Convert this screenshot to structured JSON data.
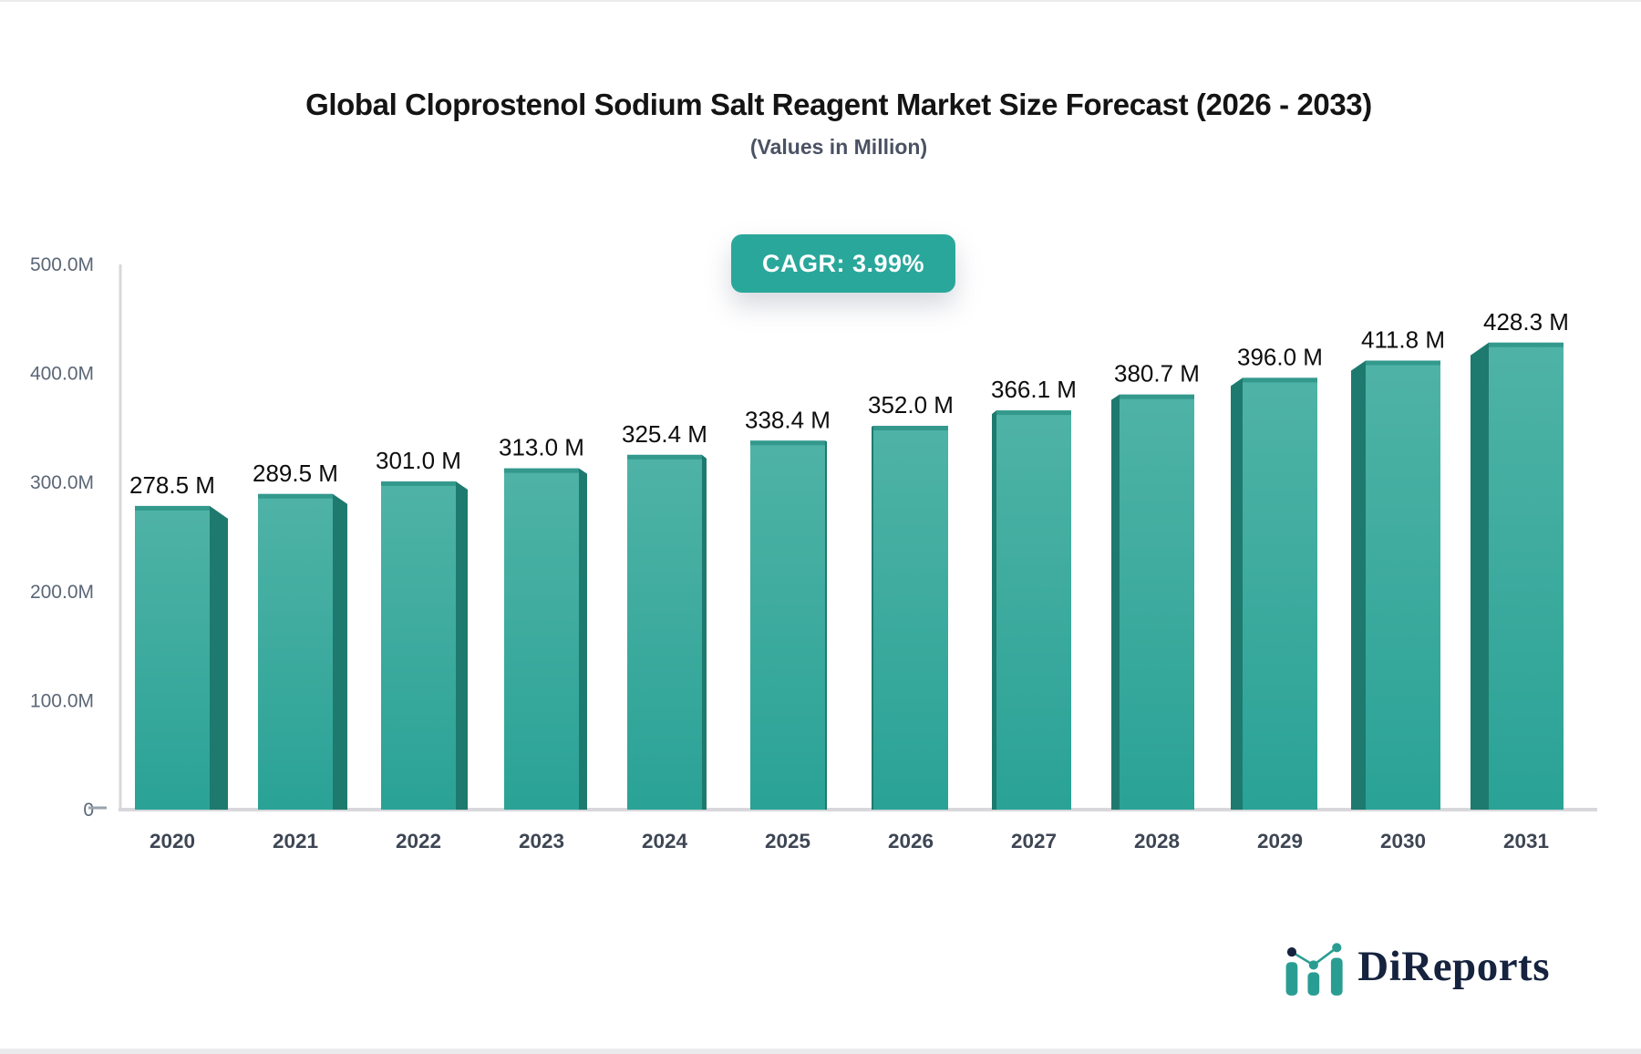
{
  "title": "Global Cloprostenol Sodium Salt Reagent Market Size Forecast (2026 - 2033)",
  "subtitle": "(Values in Million)",
  "cagr_badge": "CAGR: 3.99%",
  "logo": {
    "text": "DiReports"
  },
  "colors": {
    "accent_teal": "#2AA79B",
    "bar_front_top": "#4FB3A6",
    "bar_front_bottom": "#2AA296",
    "bar_side": "#1E7A6E",
    "bar_top_edge": "#2F9488",
    "axis_line": "#D8D8DC",
    "tick_dash": "#9AA3AD",
    "tick_text": "#5B6777",
    "year_text": "#3E4654",
    "value_text": "#0D0D0D",
    "logo_navy": "#16233F",
    "logo_teal": "#2A9D93"
  },
  "chart_data": {
    "type": "bar",
    "title": "Global Cloprostenol Sodium Salt Reagent Market Size Forecast (2026 - 2033)",
    "subtitle": "(Values in Million)",
    "xlabel": "",
    "ylabel": "",
    "ylim": [
      0,
      500
    ],
    "grid": false,
    "legend": "none",
    "categories": [
      "2020",
      "2021",
      "2022",
      "2023",
      "2024",
      "2025",
      "2026",
      "2027",
      "2028",
      "2029",
      "2030",
      "2031"
    ],
    "values": [
      278.5,
      289.5,
      301.0,
      313.0,
      325.4,
      338.4,
      352.0,
      366.1,
      380.7,
      396.0,
      411.8,
      428.3
    ],
    "value_labels": [
      "278.5 M",
      "289.5 M",
      "301.0 M",
      "313.0 M",
      "325.4 M",
      "338.4 M",
      "352.0 M",
      "366.1 M",
      "380.7 M",
      "396.0 M",
      "411.8 M",
      "428.3 M"
    ],
    "yticks": [
      {
        "value": 0,
        "label": "0"
      },
      {
        "value": 100,
        "label": "100.0M"
      },
      {
        "value": 200,
        "label": "200.0M"
      },
      {
        "value": 300,
        "label": "300.0M"
      },
      {
        "value": 400,
        "label": "400.0M"
      },
      {
        "value": 500,
        "label": "500.0M"
      }
    ]
  }
}
